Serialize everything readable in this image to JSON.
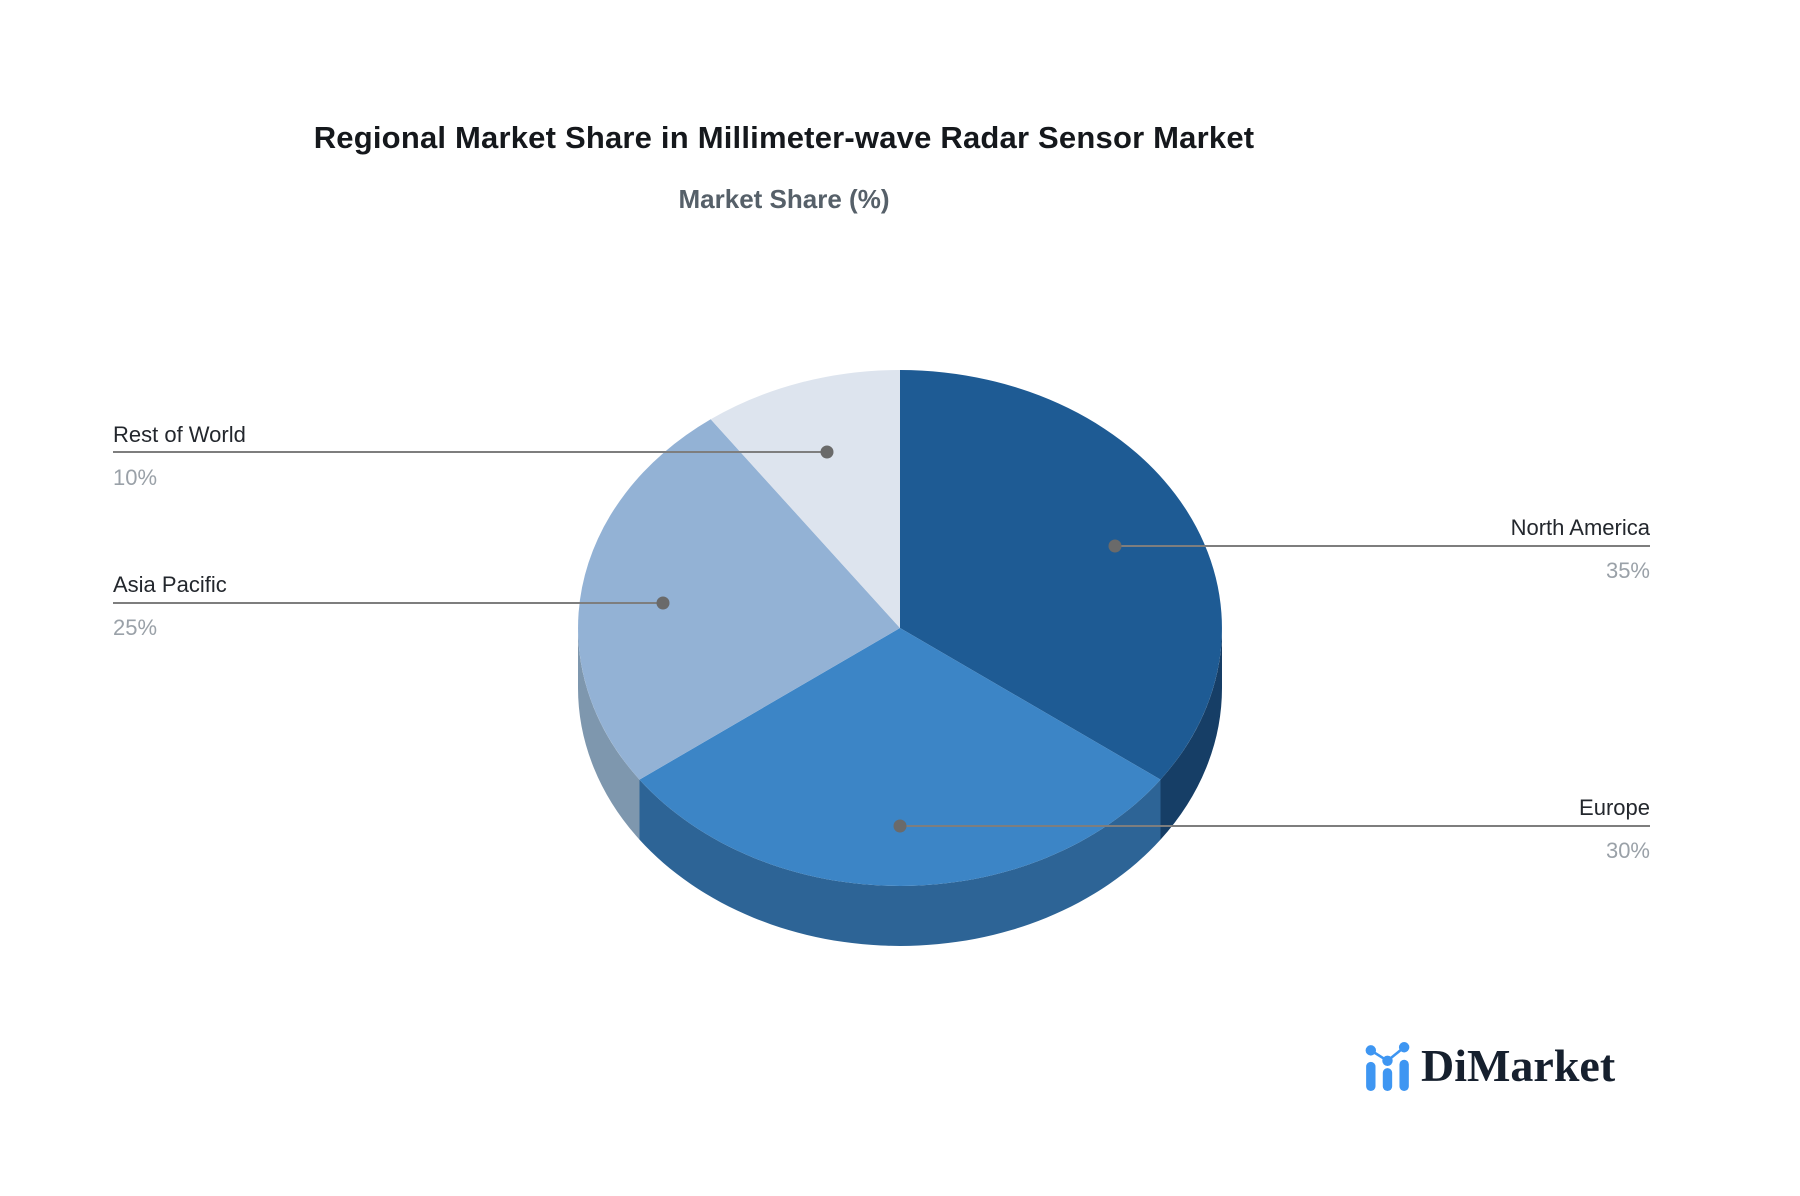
{
  "chart_data": {
    "type": "pie",
    "style": "3d",
    "title": "Regional Market Share in Millimeter-wave Radar Sensor Market",
    "subtitle": "Market Share (%)",
    "unit": "%",
    "start_angle": "12 o'clock, clockwise",
    "legend_position": "callout labels with leader lines",
    "slices": [
      {
        "id": "north-america",
        "label": "North America",
        "value": 35,
        "display": "35%",
        "color": "#1e5b94",
        "side_color": "#163e66"
      },
      {
        "id": "europe",
        "label": "Europe",
        "value": 30,
        "display": "30%",
        "color": "#3c85c6",
        "side_color": "#2d6496"
      },
      {
        "id": "asia-pacific",
        "label": "Asia Pacific",
        "value": 25,
        "display": "25%",
        "color": "#93b2d5",
        "side_color": "#7e97ae"
      },
      {
        "id": "rest-of-world",
        "label": "Rest of World",
        "value": 10,
        "display": "10%",
        "color": "#dde4ee",
        "side_color": "#b9c5d5"
      }
    ],
    "leader_line_color": "#7e7e7e",
    "leader_dot_color": "#6a6a6a"
  },
  "branding": {
    "logo_text": "DiMarket",
    "logo_icon": "bar-chart-with-trend-dots",
    "logo_blue": "#3e96f2"
  }
}
